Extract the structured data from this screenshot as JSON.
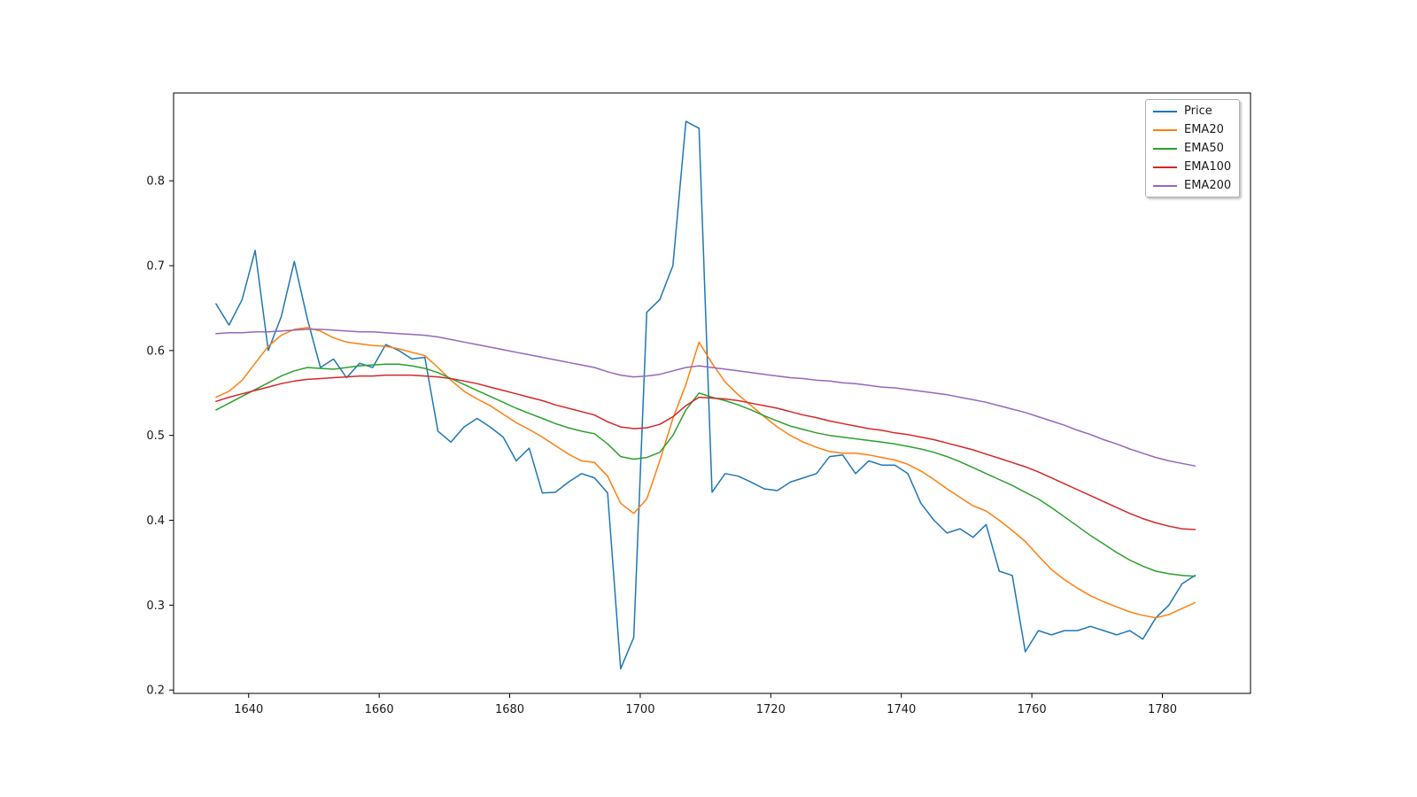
{
  "figure": {
    "background": "#ffffff"
  },
  "chart_data": {
    "type": "line",
    "title": "",
    "xlabel": "",
    "ylabel": "",
    "xlim": [
      1628.5,
      1793.5
    ],
    "ylim": [
      0.196,
      0.9035
    ],
    "x_ticks": [
      1640,
      1660,
      1680,
      1700,
      1720,
      1740,
      1760,
      1780
    ],
    "y_ticks": [
      0.2,
      0.3,
      0.4,
      0.5,
      0.6,
      0.7,
      0.8
    ],
    "grid": false,
    "legend_position": "upper right",
    "x": [
      1635,
      1637,
      1639,
      1641,
      1643,
      1645,
      1647,
      1649,
      1651,
      1653,
      1655,
      1657,
      1659,
      1661,
      1663,
      1665,
      1667,
      1669,
      1671,
      1673,
      1675,
      1677,
      1679,
      1681,
      1683,
      1685,
      1687,
      1689,
      1691,
      1693,
      1695,
      1697,
      1699,
      1701,
      1703,
      1705,
      1707,
      1709,
      1711,
      1713,
      1715,
      1717,
      1719,
      1721,
      1723,
      1725,
      1727,
      1729,
      1731,
      1733,
      1735,
      1737,
      1739,
      1741,
      1743,
      1745,
      1747,
      1749,
      1751,
      1753,
      1755,
      1757,
      1759,
      1761,
      1763,
      1765,
      1767,
      1769,
      1771,
      1773,
      1775,
      1777,
      1779,
      1781,
      1783,
      1785
    ],
    "series": [
      {
        "name": "Price",
        "color": "#1f77b4",
        "values": [
          0.655,
          0.63,
          0.66,
          0.718,
          0.6,
          0.64,
          0.705,
          0.637,
          0.58,
          0.59,
          0.568,
          0.585,
          0.58,
          0.607,
          0.6,
          0.59,
          0.592,
          0.505,
          0.492,
          0.51,
          0.52,
          0.51,
          0.498,
          0.47,
          0.485,
          0.432,
          0.433,
          0.445,
          0.455,
          0.45,
          0.432,
          0.225,
          0.262,
          0.645,
          0.66,
          0.7,
          0.87,
          0.862,
          0.433,
          0.455,
          0.452,
          0.445,
          0.437,
          0.435,
          0.445,
          0.45,
          0.455,
          0.475,
          0.477,
          0.455,
          0.47,
          0.465,
          0.465,
          0.455,
          0.42,
          0.4,
          0.385,
          0.39,
          0.38,
          0.395,
          0.34,
          0.335,
          0.245,
          0.27,
          0.265,
          0.27,
          0.27,
          0.275,
          0.27,
          0.265,
          0.27,
          0.26,
          0.285,
          0.3,
          0.325,
          0.335
        ]
      },
      {
        "name": "EMA20",
        "color": "#ff7f0e",
        "values": [
          0.545,
          0.552,
          0.565,
          0.585,
          0.605,
          0.618,
          0.625,
          0.627,
          0.623,
          0.615,
          0.61,
          0.608,
          0.606,
          0.605,
          0.602,
          0.598,
          0.594,
          0.58,
          0.565,
          0.552,
          0.543,
          0.535,
          0.525,
          0.515,
          0.507,
          0.498,
          0.488,
          0.478,
          0.47,
          0.468,
          0.452,
          0.42,
          0.408,
          0.425,
          0.47,
          0.52,
          0.56,
          0.61,
          0.585,
          0.563,
          0.548,
          0.535,
          0.522,
          0.51,
          0.5,
          0.492,
          0.486,
          0.481,
          0.479,
          0.479,
          0.477,
          0.474,
          0.471,
          0.466,
          0.458,
          0.448,
          0.437,
          0.427,
          0.417,
          0.411,
          0.4,
          0.388,
          0.375,
          0.358,
          0.342,
          0.33,
          0.32,
          0.311,
          0.304,
          0.298,
          0.292,
          0.288,
          0.285,
          0.289,
          0.296,
          0.303
        ]
      },
      {
        "name": "EMA50",
        "color": "#2ca02c",
        "values": [
          0.53,
          0.538,
          0.546,
          0.554,
          0.562,
          0.57,
          0.576,
          0.58,
          0.579,
          0.578,
          0.58,
          0.582,
          0.583,
          0.584,
          0.584,
          0.582,
          0.579,
          0.574,
          0.567,
          0.56,
          0.553,
          0.546,
          0.539,
          0.532,
          0.526,
          0.52,
          0.514,
          0.509,
          0.505,
          0.502,
          0.49,
          0.475,
          0.472,
          0.474,
          0.48,
          0.5,
          0.53,
          0.55,
          0.545,
          0.541,
          0.536,
          0.53,
          0.523,
          0.517,
          0.511,
          0.507,
          0.503,
          0.5,
          0.498,
          0.496,
          0.494,
          0.492,
          0.49,
          0.487,
          0.484,
          0.48,
          0.475,
          0.469,
          0.462,
          0.455,
          0.448,
          0.441,
          0.433,
          0.425,
          0.415,
          0.404,
          0.393,
          0.382,
          0.372,
          0.362,
          0.353,
          0.346,
          0.34,
          0.337,
          0.335,
          0.334
        ]
      },
      {
        "name": "EMA100",
        "color": "#d62728",
        "values": [
          0.54,
          0.545,
          0.549,
          0.553,
          0.557,
          0.561,
          0.564,
          0.566,
          0.567,
          0.568,
          0.569,
          0.57,
          0.57,
          0.571,
          0.571,
          0.571,
          0.57,
          0.569,
          0.567,
          0.564,
          0.561,
          0.557,
          0.553,
          0.549,
          0.545,
          0.541,
          0.536,
          0.532,
          0.528,
          0.524,
          0.516,
          0.51,
          0.508,
          0.509,
          0.513,
          0.522,
          0.535,
          0.545,
          0.544,
          0.543,
          0.541,
          0.538,
          0.535,
          0.532,
          0.528,
          0.524,
          0.521,
          0.517,
          0.514,
          0.511,
          0.508,
          0.506,
          0.503,
          0.501,
          0.498,
          0.495,
          0.491,
          0.487,
          0.483,
          0.478,
          0.473,
          0.468,
          0.463,
          0.457,
          0.45,
          0.443,
          0.436,
          0.429,
          0.422,
          0.415,
          0.408,
          0.402,
          0.397,
          0.393,
          0.39,
          0.389
        ]
      },
      {
        "name": "EMA200",
        "color": "#9467bd",
        "values": [
          0.62,
          0.621,
          0.621,
          0.622,
          0.622,
          0.623,
          0.624,
          0.625,
          0.625,
          0.624,
          0.623,
          0.622,
          0.622,
          0.621,
          0.62,
          0.619,
          0.618,
          0.616,
          0.613,
          0.61,
          0.607,
          0.604,
          0.601,
          0.598,
          0.595,
          0.592,
          0.589,
          0.586,
          0.583,
          0.58,
          0.575,
          0.571,
          0.569,
          0.57,
          0.572,
          0.576,
          0.58,
          0.582,
          0.58,
          0.578,
          0.576,
          0.574,
          0.572,
          0.57,
          0.568,
          0.567,
          0.565,
          0.564,
          0.562,
          0.561,
          0.559,
          0.557,
          0.556,
          0.554,
          0.552,
          0.55,
          0.548,
          0.545,
          0.542,
          0.539,
          0.535,
          0.531,
          0.527,
          0.522,
          0.517,
          0.512,
          0.506,
          0.501,
          0.495,
          0.49,
          0.484,
          0.479,
          0.474,
          0.47,
          0.467,
          0.464
        ]
      }
    ]
  }
}
